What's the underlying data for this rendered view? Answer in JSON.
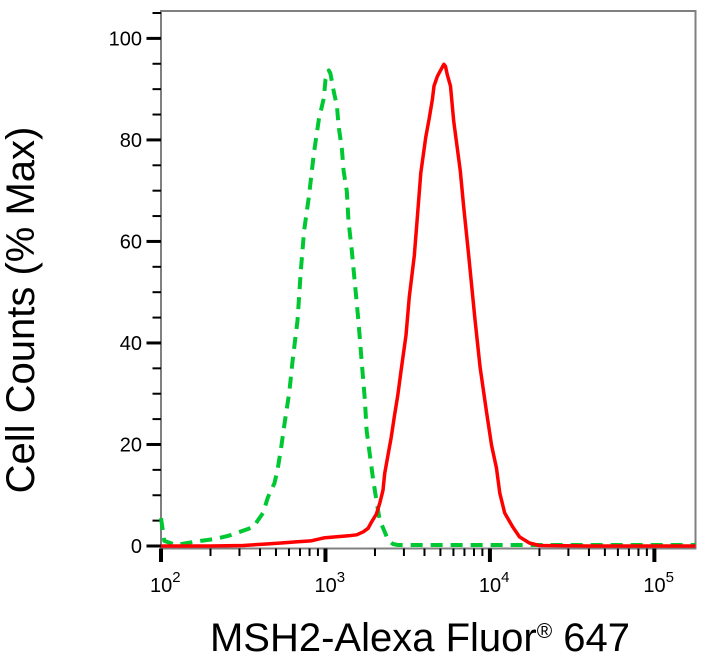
{
  "chart_data": {
    "type": "line",
    "subtype": "flow-cytometry-overlay-histogram",
    "title": "",
    "xlabel": "MSH2-Alexa Fluor® 647",
    "xlabel_parts": {
      "main": "MSH2-Alexa Fluor",
      "sup": "®",
      "tail": " 647"
    },
    "ylabel": "Cell Counts (% Max)",
    "x_scale": "log10",
    "x_range_log10": [
      2.0,
      5.25
    ],
    "x_tick_base": "10",
    "x_tick_exponents": [
      2,
      3,
      4,
      5
    ],
    "x_minor_ticks": "log-decade-2-to-9",
    "y_range": [
      -0.5,
      105.6
    ],
    "y_ticks": [
      0,
      20,
      40,
      60,
      80,
      100
    ],
    "y_tick_labels": [
      "0",
      "20",
      "40",
      "60",
      "80",
      "100"
    ],
    "y_minor_step": 5,
    "grid": false,
    "legend_position": "none",
    "frame_color": "#808080",
    "tick_color": "#000000",
    "series": [
      {
        "name": "green-dashed-curve",
        "color": "#00C832",
        "style": "dashed",
        "stroke_width": 4,
        "peak": {
          "x_log10": 3.02,
          "pct": 93.7
        },
        "points_log10x_pct": [
          [
            2.0,
            5.5
          ],
          [
            2.02,
            1.0
          ],
          [
            2.09,
            0.2
          ],
          [
            2.16,
            0.6
          ],
          [
            2.24,
            1.0
          ],
          [
            2.33,
            1.4
          ],
          [
            2.41,
            2.0
          ],
          [
            2.48,
            2.8
          ],
          [
            2.56,
            3.7
          ],
          [
            2.62,
            6.5
          ],
          [
            2.65,
            9.6
          ],
          [
            2.69,
            12.4
          ],
          [
            2.71,
            15.3
          ],
          [
            2.73,
            19.3
          ],
          [
            2.75,
            23.8
          ],
          [
            2.78,
            30.3
          ],
          [
            2.8,
            36.5
          ],
          [
            2.83,
            44.4
          ],
          [
            2.85,
            54.2
          ],
          [
            2.87,
            62.1
          ],
          [
            2.9,
            69.0
          ],
          [
            2.93,
            77.4
          ],
          [
            2.96,
            84.1
          ],
          [
            2.99,
            88.2
          ],
          [
            3.0,
            91.9
          ],
          [
            3.02,
            93.7
          ],
          [
            3.03,
            93.1
          ],
          [
            3.05,
            89.6
          ],
          [
            3.07,
            86.6
          ],
          [
            3.08,
            82.7
          ],
          [
            3.1,
            78.2
          ],
          [
            3.11,
            73.9
          ],
          [
            3.13,
            69.9
          ],
          [
            3.14,
            64.0
          ],
          [
            3.16,
            58.2
          ],
          [
            3.18,
            51.3
          ],
          [
            3.2,
            44.4
          ],
          [
            3.22,
            36.5
          ],
          [
            3.24,
            28.7
          ],
          [
            3.25,
            22.8
          ],
          [
            3.27,
            17.9
          ],
          [
            3.29,
            13.0
          ],
          [
            3.31,
            9.0
          ],
          [
            3.33,
            5.1
          ],
          [
            3.36,
            2.8
          ],
          [
            3.38,
            1.2
          ],
          [
            3.41,
            0.4
          ],
          [
            3.44,
            0.2
          ],
          [
            3.6,
            0.2
          ],
          [
            4.0,
            0.2
          ],
          [
            4.5,
            0.2
          ],
          [
            5.0,
            0.2
          ],
          [
            5.25,
            0.2
          ]
        ]
      },
      {
        "name": "red-solid-curve",
        "color": "#FF0000",
        "style": "solid",
        "stroke_width": 3.5,
        "peak": {
          "x_log10": 3.72,
          "pct": 94.9
        },
        "points_log10x_pct": [
          [
            2.0,
            0.0
          ],
          [
            2.3,
            0.0
          ],
          [
            2.5,
            0.1
          ],
          [
            2.64,
            0.4
          ],
          [
            2.73,
            0.6
          ],
          [
            2.82,
            0.8
          ],
          [
            2.91,
            1.0
          ],
          [
            2.99,
            1.6
          ],
          [
            3.06,
            1.8
          ],
          [
            3.14,
            2.0
          ],
          [
            3.19,
            2.2
          ],
          [
            3.23,
            2.8
          ],
          [
            3.26,
            3.5
          ],
          [
            3.28,
            4.7
          ],
          [
            3.31,
            6.3
          ],
          [
            3.33,
            8.4
          ],
          [
            3.35,
            11.0
          ],
          [
            3.36,
            14.3
          ],
          [
            3.38,
            17.9
          ],
          [
            3.4,
            21.4
          ],
          [
            3.42,
            25.7
          ],
          [
            3.44,
            29.7
          ],
          [
            3.46,
            34.6
          ],
          [
            3.49,
            41.5
          ],
          [
            3.51,
            49.1
          ],
          [
            3.54,
            57.2
          ],
          [
            3.56,
            65.4
          ],
          [
            3.58,
            73.5
          ],
          [
            3.61,
            80.6
          ],
          [
            3.63,
            84.1
          ],
          [
            3.65,
            88.0
          ],
          [
            3.66,
            90.6
          ],
          [
            3.68,
            92.5
          ],
          [
            3.69,
            93.1
          ],
          [
            3.71,
            94.3
          ],
          [
            3.72,
            94.9
          ],
          [
            3.73,
            94.5
          ],
          [
            3.74,
            92.9
          ],
          [
            3.76,
            90.6
          ],
          [
            3.78,
            83.7
          ],
          [
            3.8,
            78.8
          ],
          [
            3.82,
            73.9
          ],
          [
            3.84,
            67.0
          ],
          [
            3.87,
            57.6
          ],
          [
            3.91,
            44.4
          ],
          [
            3.94,
            35.2
          ],
          [
            3.98,
            26.3
          ],
          [
            4.01,
            19.8
          ],
          [
            4.04,
            15.3
          ],
          [
            4.06,
            10.4
          ],
          [
            4.09,
            6.5
          ],
          [
            4.14,
            3.7
          ],
          [
            4.18,
            1.8
          ],
          [
            4.24,
            0.6
          ],
          [
            4.3,
            0.1
          ],
          [
            4.6,
            0.0
          ],
          [
            5.0,
            0.0
          ],
          [
            5.25,
            0.0
          ]
        ]
      }
    ]
  }
}
